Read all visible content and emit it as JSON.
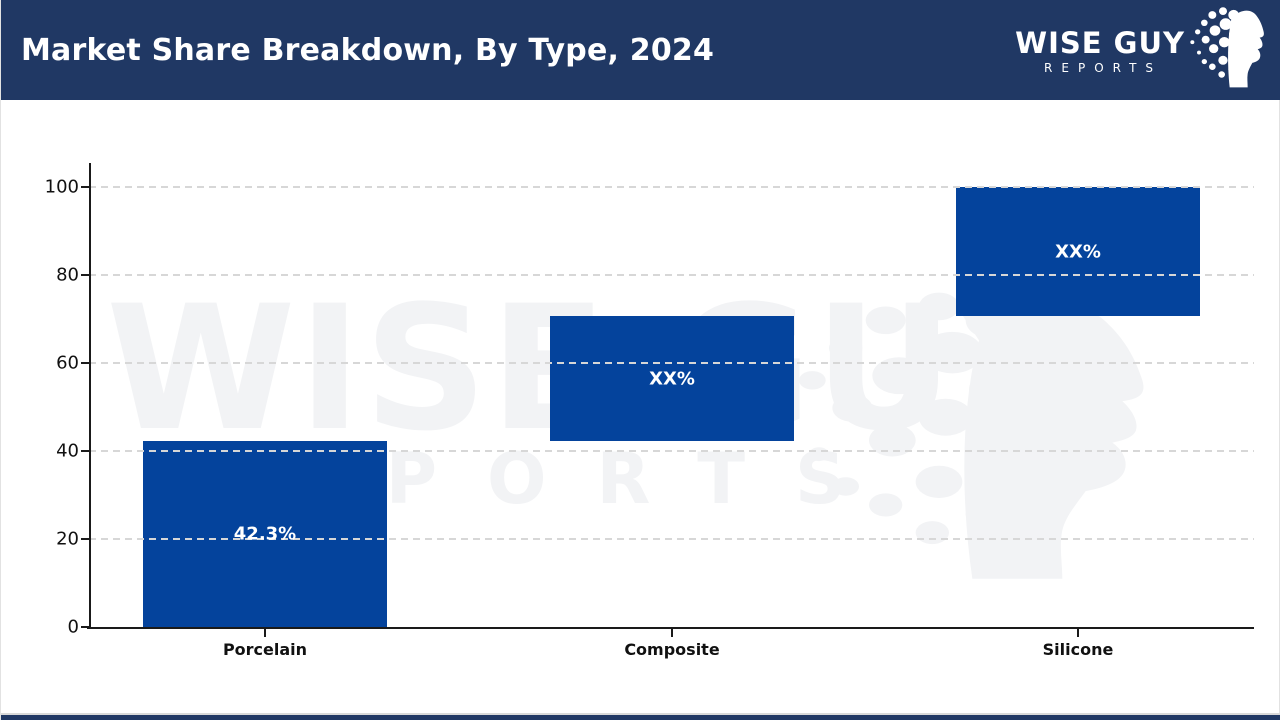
{
  "header": {
    "title": "Market Share Breakdown, By Type, 2024"
  },
  "logo": {
    "line1": "WISE GUY",
    "line2": "REPORTS"
  },
  "watermark": {
    "line1": "WISE GUY",
    "line2": "REPORTS"
  },
  "colors": {
    "header_bg": "#203864",
    "bar": "#04439C",
    "gridline": "#d7d7d7",
    "axis": "#1a1a1a",
    "watermark": "#f2f3f5",
    "bar_label_text": "#ffffff"
  },
  "chart_data": {
    "type": "bar",
    "subtype": "stacked-waterfall",
    "title": "Market Share Breakdown, By Type, 2024",
    "xlabel": "",
    "ylabel": "",
    "categories": [
      "Porcelain",
      "Composite",
      "Silicone"
    ],
    "segments": [
      {
        "category": "Porcelain",
        "start": 0,
        "end": 42.3,
        "label": "42.3%"
      },
      {
        "category": "Composite",
        "start": 42.3,
        "end": 70.6,
        "label": "XX%"
      },
      {
        "category": "Silicone",
        "start": 70.6,
        "end": 100,
        "label": "XX%"
      }
    ],
    "yticks": [
      0,
      20,
      40,
      60,
      80,
      100
    ],
    "ylim": [
      0,
      105.7
    ],
    "grid": "horizontal-dashed",
    "legend": "none"
  }
}
